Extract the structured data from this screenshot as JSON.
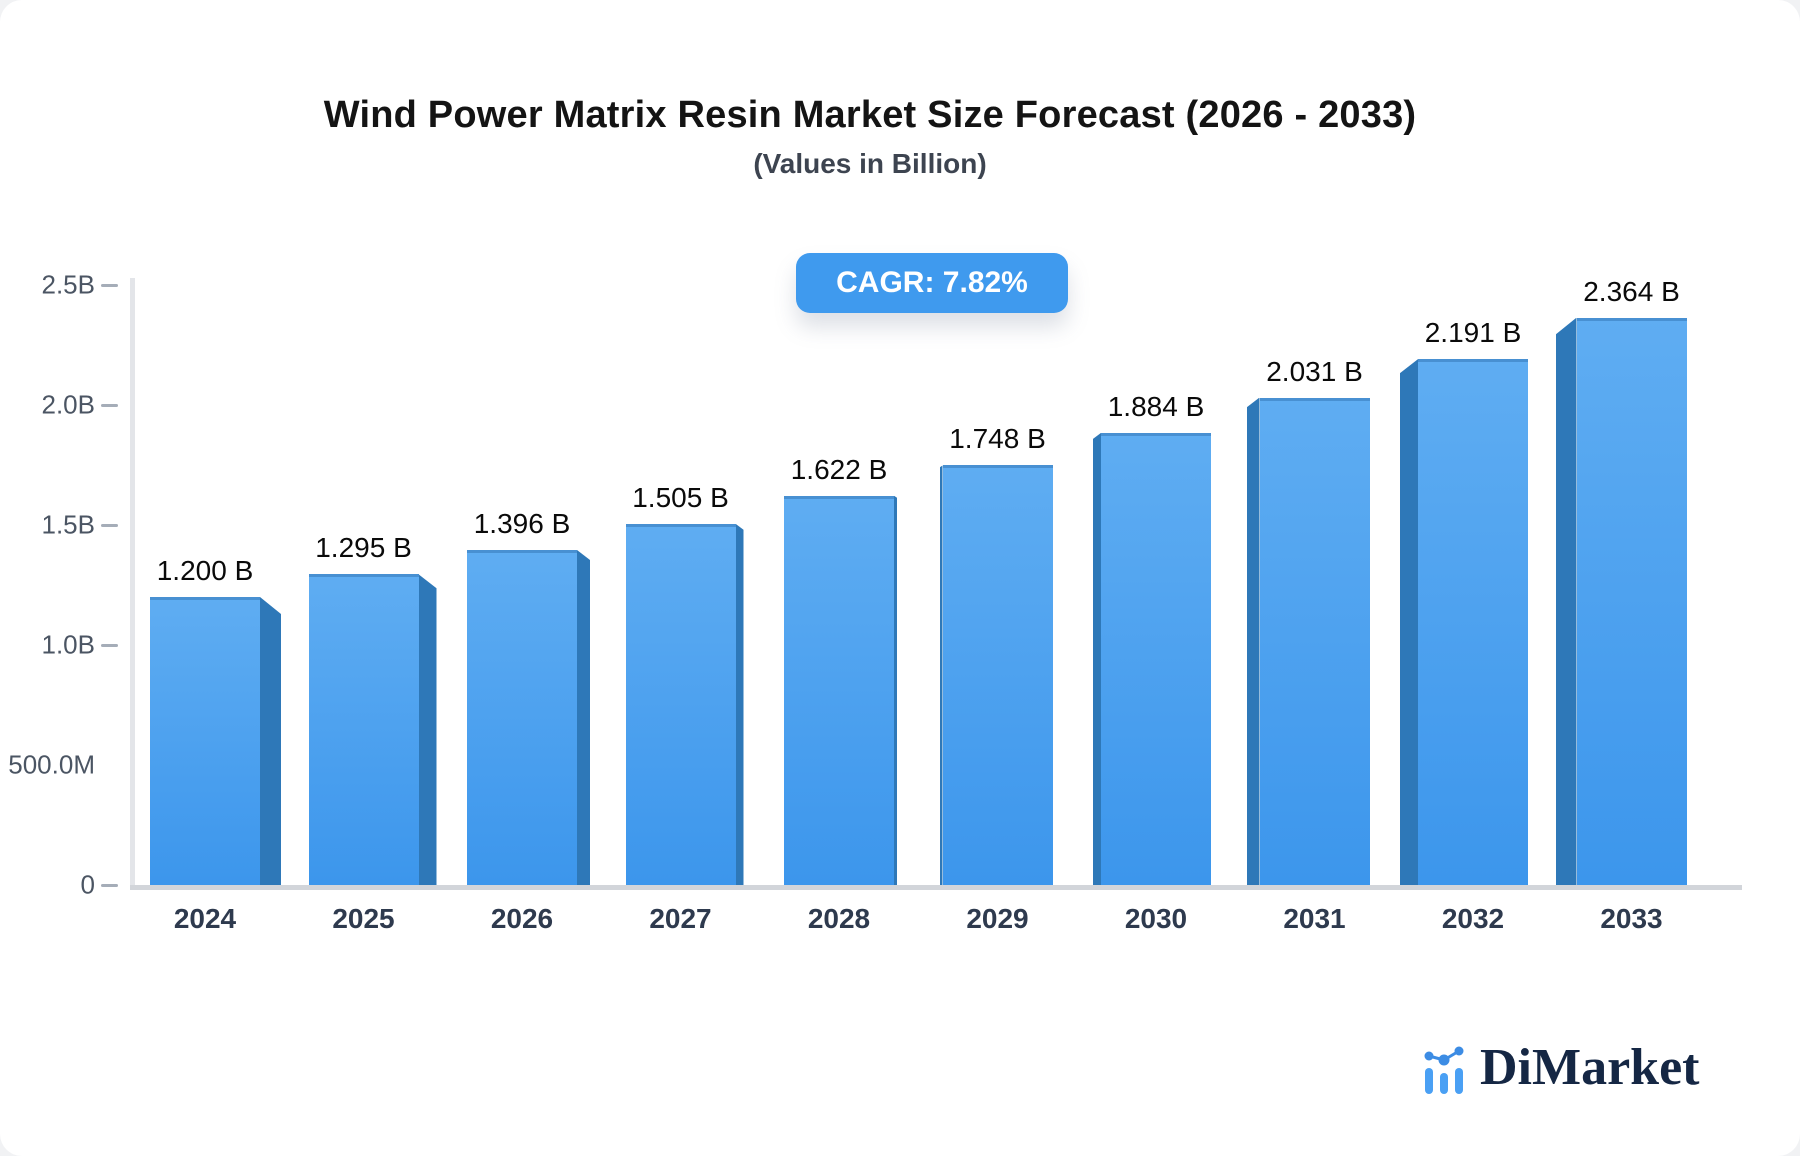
{
  "header": {
    "title": "Wind Power Matrix Resin Market Size Forecast (2026 - 2033)",
    "subtitle": "(Values in Billion)",
    "cagr_badge": "CAGR: 7.82%"
  },
  "chart_data": {
    "type": "bar",
    "title": "Wind Power Matrix Resin Market Size Forecast (2026 - 2033)",
    "subtitle": "(Values in Billion)",
    "cagr_percent": 7.82,
    "categories": [
      "2024",
      "2025",
      "2026",
      "2027",
      "2028",
      "2029",
      "2030",
      "2031",
      "2032",
      "2033"
    ],
    "values": [
      1.2,
      1.295,
      1.396,
      1.505,
      1.622,
      1.748,
      1.884,
      2.031,
      2.191,
      2.364
    ],
    "value_labels": [
      "1.200 B",
      "1.295 B",
      "1.396 B",
      "1.505 B",
      "1.622 B",
      "1.748 B",
      "1.884 B",
      "2.031 B",
      "2.191 B",
      "2.364 B"
    ],
    "value_unit": "B",
    "xlabel": "",
    "ylabel": "",
    "ylim": [
      0,
      2.5
    ],
    "grid": false,
    "legend": false,
    "y_ticks": [
      {
        "label": "2.5B",
        "value": 2.5,
        "tick": true
      },
      {
        "label": "2.0B",
        "value": 2.0,
        "tick": true
      },
      {
        "label": "1.5B",
        "value": 1.5,
        "tick": true
      },
      {
        "label": "1.0B",
        "value": 1.0,
        "tick": true
      },
      {
        "label": "500.0M",
        "value": 0.5,
        "tick": false
      },
      {
        "label": "0",
        "value": 0.0,
        "tick": true
      }
    ]
  },
  "colors": {
    "badge_bg": "#3f9aee",
    "bar_front_top": "#5fadf2",
    "bar_front_bottom": "#3c96ec",
    "bar_side": "#2e78b8",
    "brand_navy": "#152744",
    "brand_blue": "#4aa0f4",
    "brand_blue_dark": "#3c8ce4"
  },
  "footer": {
    "brand": "DiMarket",
    "logo_icon": "bar-chart-trend-icon"
  }
}
